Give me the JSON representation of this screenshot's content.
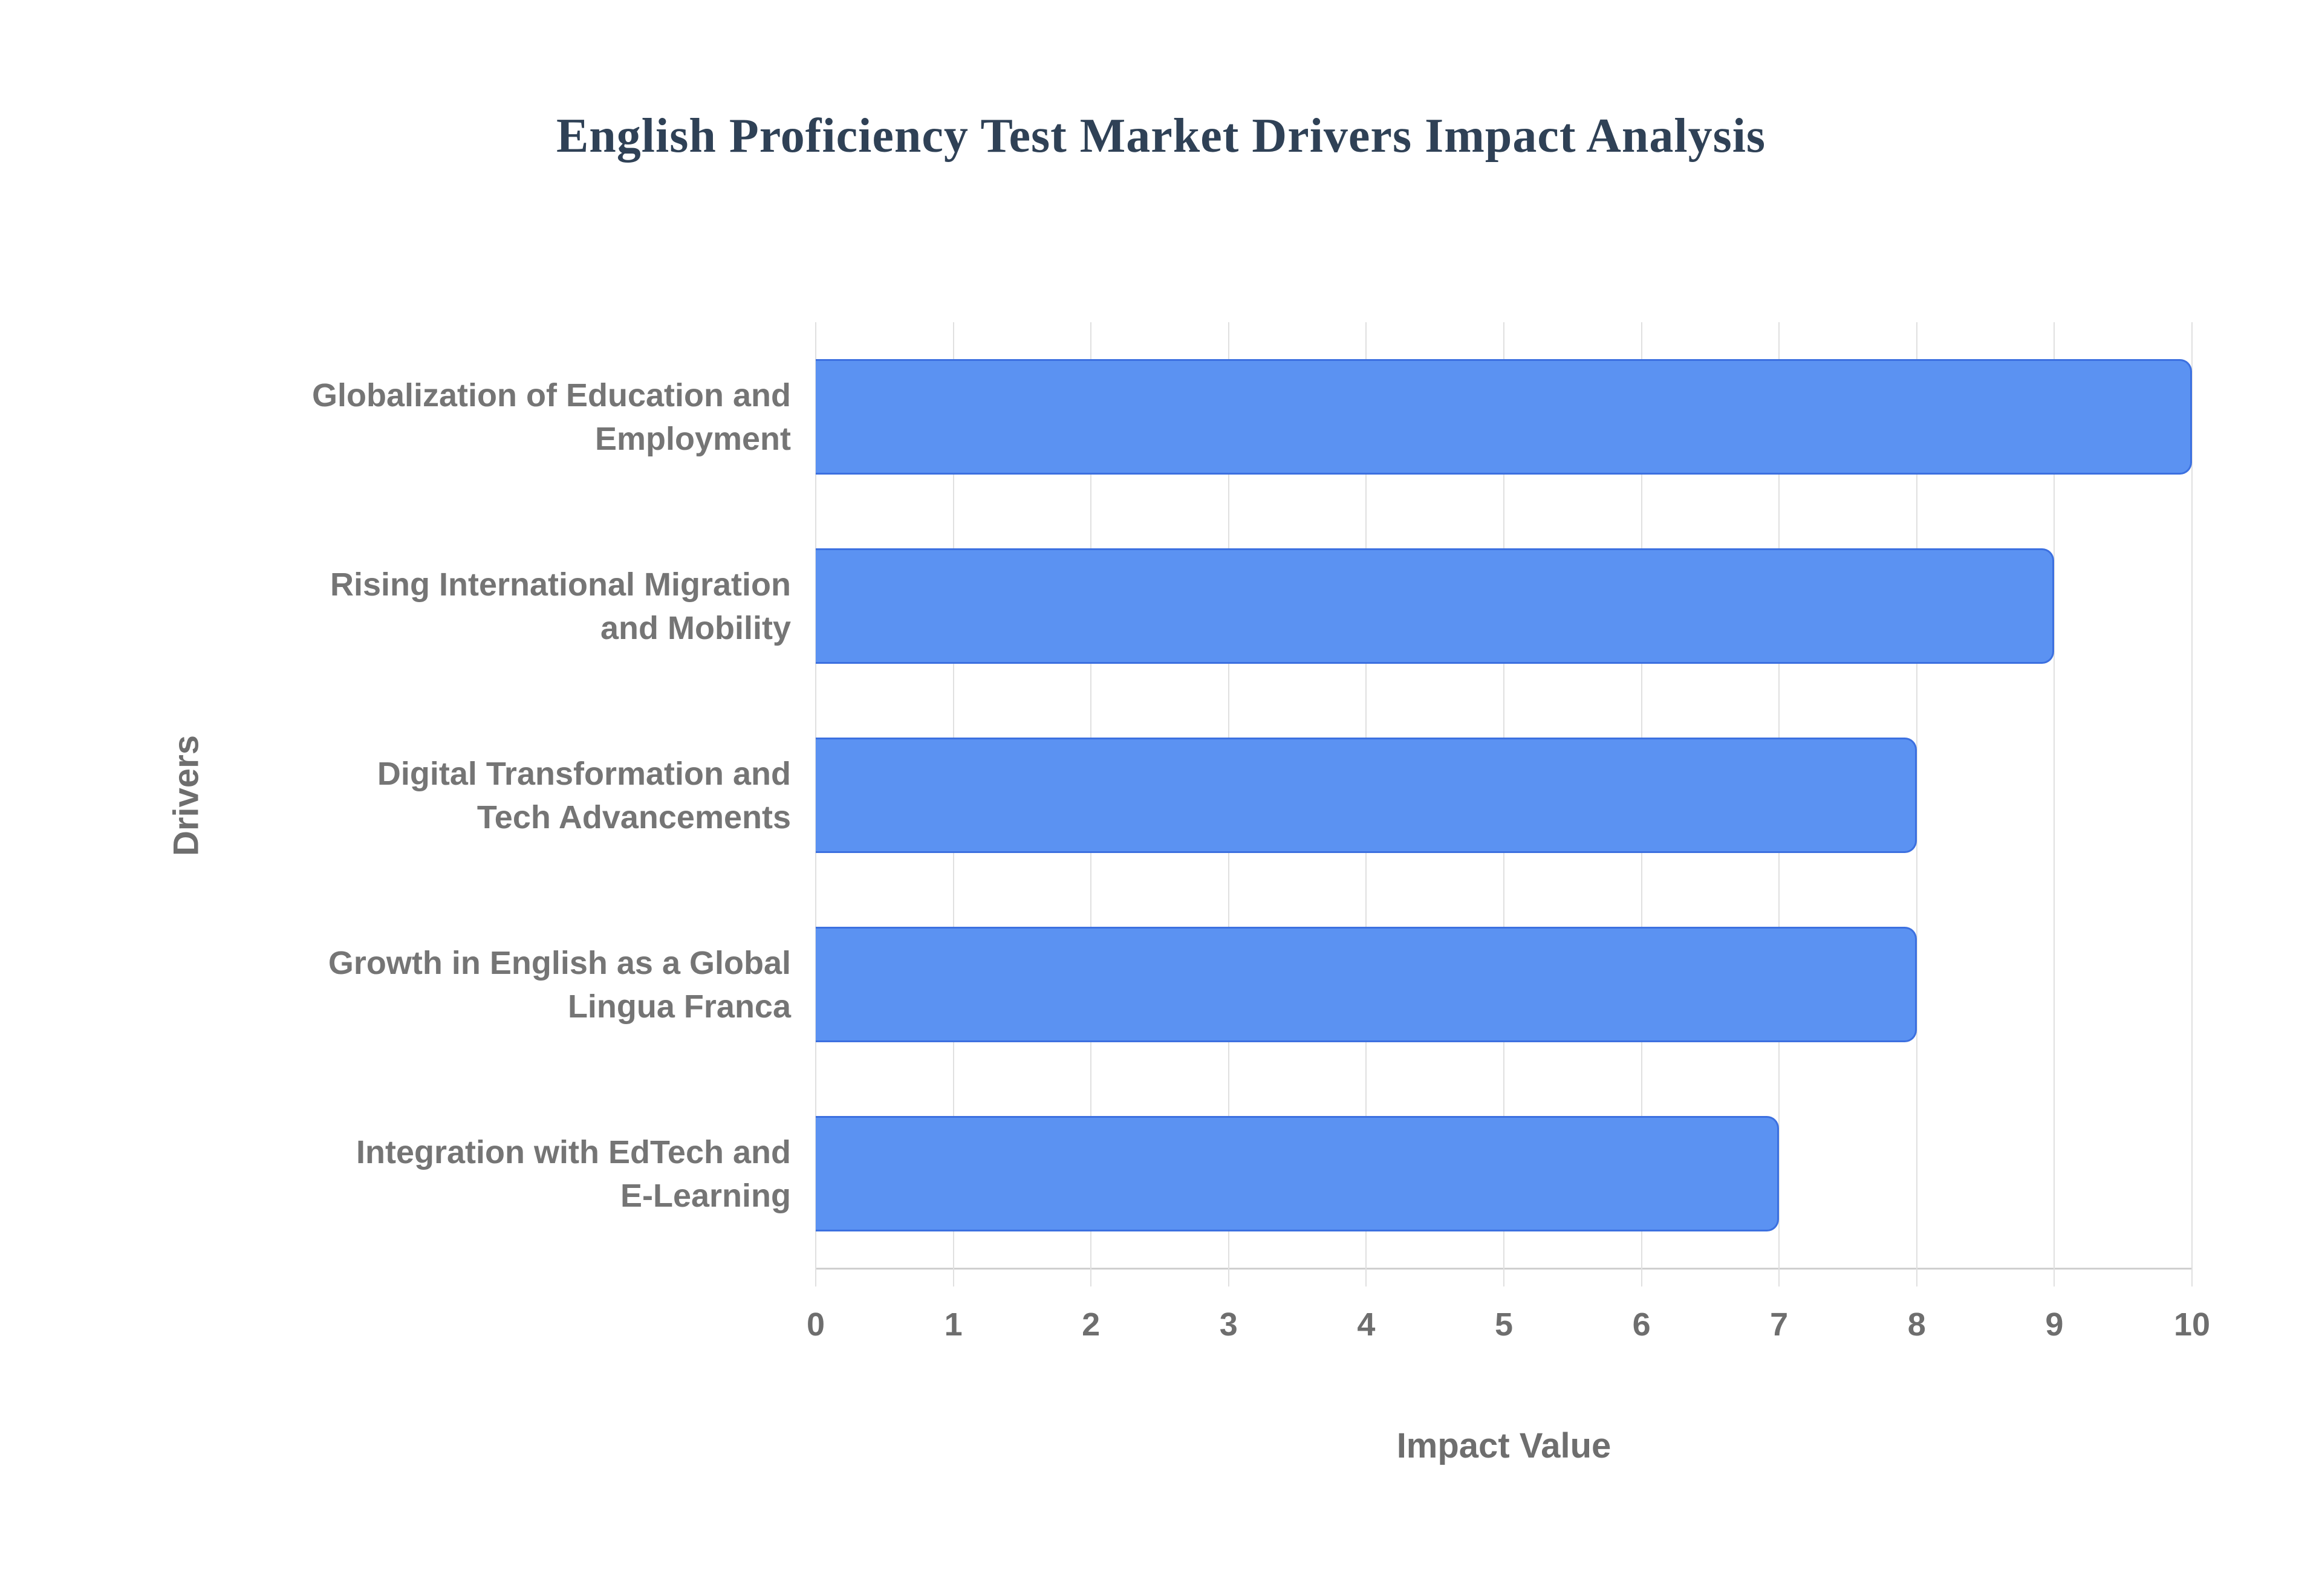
{
  "style": {
    "background": "#ffffff",
    "title_color": "#2f4156",
    "label_color": "#757575",
    "tick_color": "#6e6e6e",
    "grid_color": "#e0e0e0",
    "axis_line_color": "#cfcfcf",
    "bar_fill": "#5b92f2",
    "bar_border": "#3c70e0"
  },
  "chart_data": {
    "type": "bar",
    "orientation": "horizontal",
    "title": "English Proficiency Test Market Drivers Impact Analysis",
    "xlabel": "Impact Value",
    "ylabel": "Drivers",
    "categories": [
      "Globalization of Education and\nEmployment",
      "Rising International Migration\nand Mobility",
      "Digital Transformation and\nTech Advancements",
      "Growth in English as a Global\nLingua Franca",
      "Integration with EdTech and\nE-Learning"
    ],
    "values": [
      10,
      9,
      8,
      8,
      7
    ],
    "xlim": [
      0,
      10
    ],
    "xticks": [
      0,
      1,
      2,
      3,
      4,
      5,
      6,
      7,
      8,
      9,
      10
    ],
    "grid": true,
    "legend": false
  }
}
